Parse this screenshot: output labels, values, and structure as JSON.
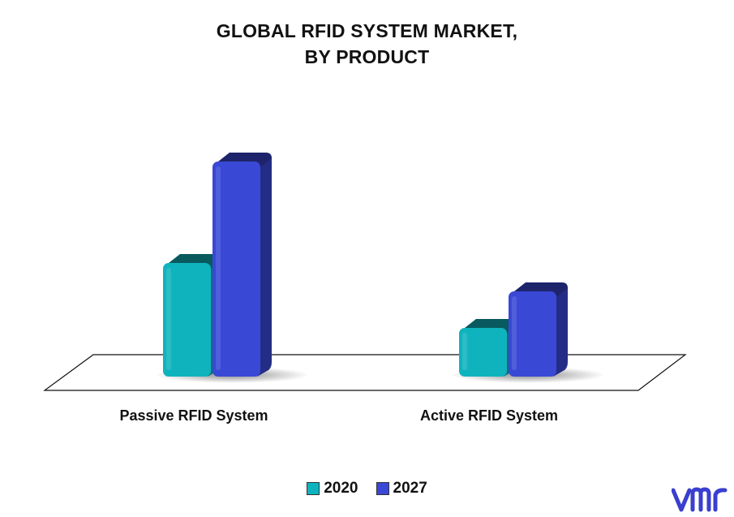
{
  "chart_data": {
    "type": "bar",
    "title_lines": [
      "GLOBAL RFID SYSTEM MARKET,",
      "BY PRODUCT"
    ],
    "categories": [
      "Passive RFID System",
      "Active RFID System"
    ],
    "series": [
      {
        "name": "2020",
        "values": [
          140,
          60
        ],
        "color": "#0fb3be"
      },
      {
        "name": "2027",
        "values": [
          265,
          105
        ],
        "color": "#3a48d6"
      }
    ],
    "xlabel": "",
    "ylabel": "",
    "ylim": [
      0,
      300
    ],
    "grid": false,
    "legend_position": "bottom"
  },
  "legend": {
    "items": [
      {
        "label": "2020",
        "color": "#0fb3be"
      },
      {
        "label": "2027",
        "color": "#3a48d6"
      }
    ]
  },
  "logo": {
    "icon": "vmr-logo-icon",
    "color": "#3a3fcf"
  }
}
